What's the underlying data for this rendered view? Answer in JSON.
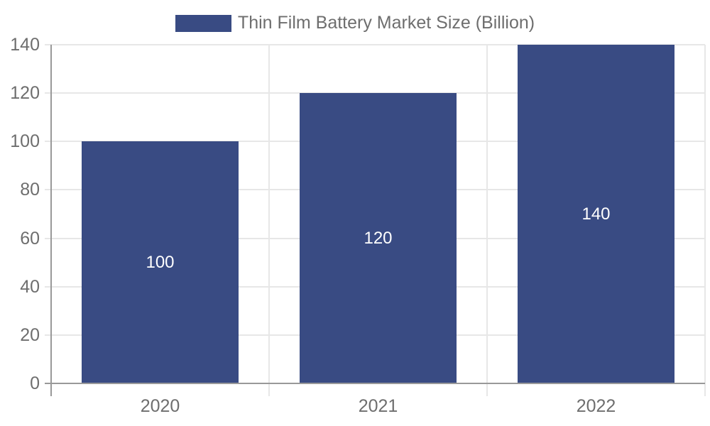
{
  "legend": {
    "label": "Thin Film Battery Market Size (Billion)"
  },
  "chart_data": {
    "type": "bar",
    "title": "Thin Film Battery Market Size (Billion)",
    "categories": [
      "2020",
      "2021",
      "2022"
    ],
    "series": [
      {
        "name": "Thin Film Battery Market Size (Billion)",
        "values": [
          100,
          120,
          140
        ]
      }
    ],
    "data_labels": [
      100,
      120,
      140
    ],
    "xlabel": "",
    "ylabel": "",
    "ylim": [
      0,
      140
    ],
    "yticks": [
      0,
      20,
      40,
      60,
      80,
      100,
      120,
      140
    ],
    "grid": true,
    "legend_position": "top-center",
    "colors": {
      "bar": "#394B83",
      "axis_line": "#999999",
      "grid_line": "#E7E7E7",
      "tick_label": "#6E6E6E",
      "data_label": "#FFFFFF",
      "background": "#FFFFFF"
    }
  }
}
